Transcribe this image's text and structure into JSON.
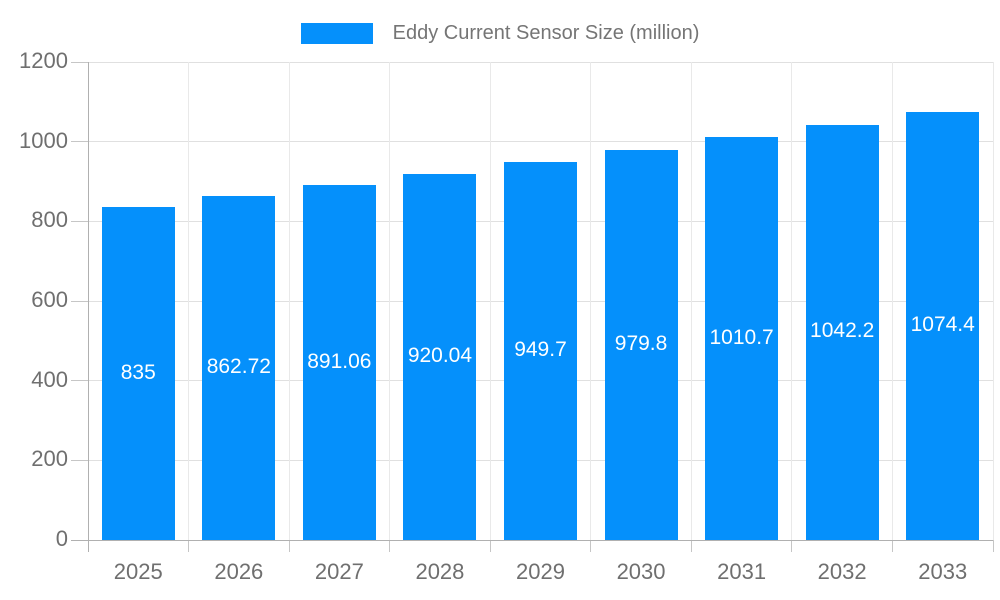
{
  "chart_data": {
    "type": "bar",
    "title": "Eddy Current Sensor Size (million)",
    "categories": [
      "2025",
      "2026",
      "2027",
      "2028",
      "2029",
      "2030",
      "2031",
      "2032",
      "2033"
    ],
    "values": [
      835,
      862.72,
      891.06,
      920.04,
      949.7,
      979.8,
      1010.7,
      1042.2,
      1074.4
    ],
    "value_labels": [
      "835",
      "862.72",
      "891.06",
      "920.04",
      "949.7",
      "979.8",
      "1010.7",
      "1042.2",
      "1074.4"
    ],
    "ytick_labels": [
      "0",
      "200",
      "400",
      "600",
      "800",
      "1000",
      "1200"
    ],
    "ylim": [
      0,
      1200
    ],
    "ytick_step": 200,
    "xlabel": "",
    "ylabel": "",
    "grid": true,
    "legend_position": "top",
    "colors": {
      "bar": "#0590FB",
      "value_text": "#ffffff",
      "axis_text": "#6f6f6f",
      "legend_text": "#757575",
      "gridline_h": "#e0e0e0",
      "gridline_v": "#e9e9e9",
      "axis_line": "#b0b0b0",
      "tick": "#c6c6c6",
      "background": "#ffffff"
    }
  }
}
